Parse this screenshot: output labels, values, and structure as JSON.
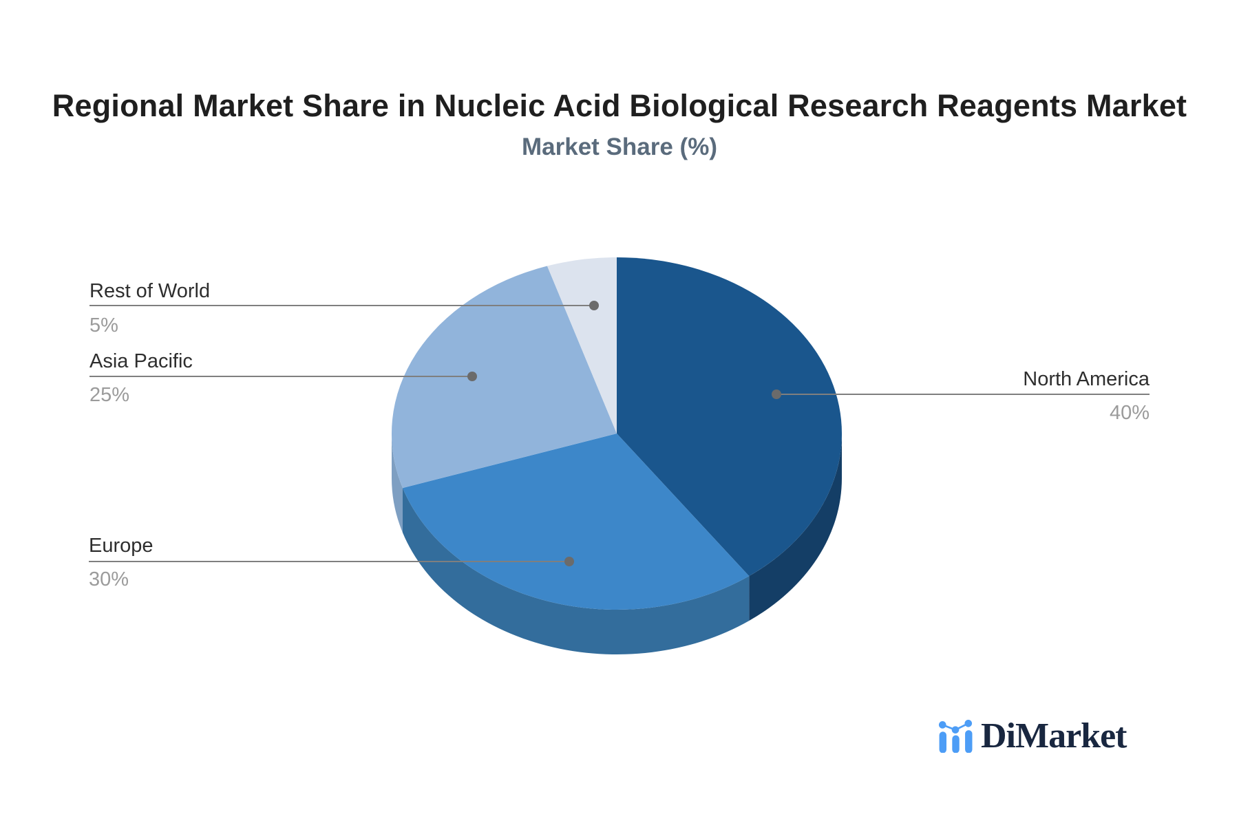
{
  "header": {
    "title": "Regional Market Share in Nucleic Acid Biological Research Reagents Market",
    "subtitle": "Market Share (%)"
  },
  "chart_data": {
    "type": "pie",
    "style": "3d",
    "title": "Regional Market Share in Nucleic Acid Biological Research Reagents Market",
    "subtitle": "Market Share (%)",
    "unit": "%",
    "direction": "clockwise",
    "start_angle_deg": 0,
    "labels": [
      "North America",
      "Europe",
      "Asia Pacific",
      "Rest of World"
    ],
    "values": [
      40,
      30,
      25,
      5
    ],
    "slices": [
      {
        "label": "North America",
        "value": 40,
        "display": "40%",
        "color": "#1A568D",
        "side_color": "#143E66"
      },
      {
        "label": "Europe",
        "value": 30,
        "display": "30%",
        "color": "#3D87C9",
        "side_color": "#336D9C"
      },
      {
        "label": "Asia Pacific",
        "value": 25,
        "display": "25%",
        "color": "#91B4DB",
        "side_color": "#7E9FC2"
      },
      {
        "label": "Rest of World",
        "value": 5,
        "display": "5%",
        "color": "#DCE3EE",
        "side_color": "#C2CBD9"
      }
    ],
    "legend_position": "none",
    "annotations": "leader lines with dots from each slice to label"
  },
  "callouts": {
    "rest_of_world": {
      "name": "Rest of World",
      "pct": "5%"
    },
    "asia_pacific": {
      "name": "Asia Pacific",
      "pct": "25%"
    },
    "europe": {
      "name": "Europe",
      "pct": "30%"
    },
    "north_america": {
      "name": "North America",
      "pct": "40%"
    }
  },
  "logo": {
    "brand": "DiMarket",
    "icon": "bar-chart-icon"
  },
  "colors": {
    "background": "#FFFFFF",
    "title_text": "#1F1F1F",
    "subtitle_text": "#5A6B7C",
    "label_text": "#2E2E2E",
    "pct_text": "#9B9B9B",
    "leader_line": "#7F7F7F",
    "leader_dot": "#6B6B6B",
    "logo_text": "#192740",
    "logo_icon": "#4D9DF6"
  }
}
